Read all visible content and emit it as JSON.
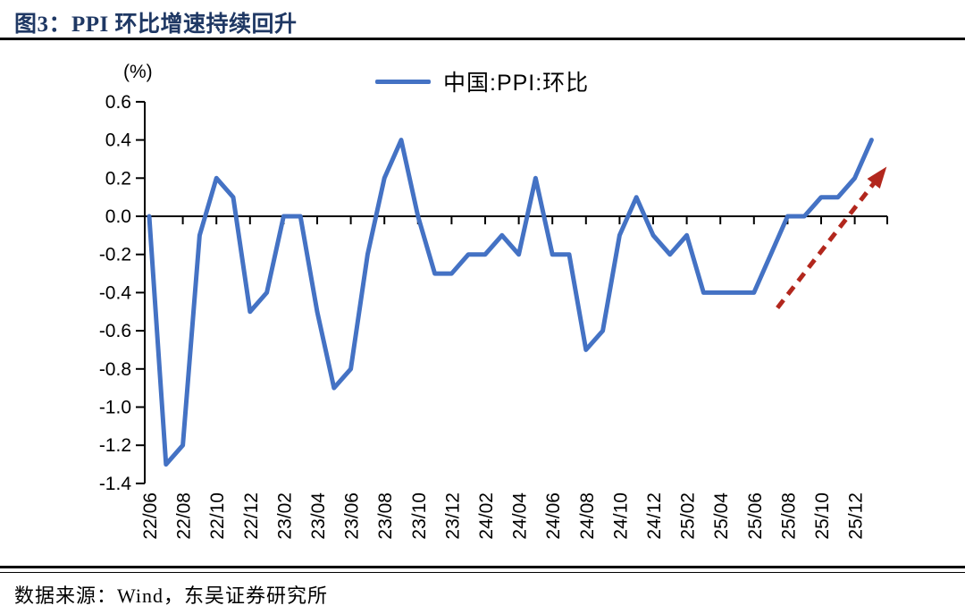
{
  "header": {
    "title": "图3：PPI 环比增速持续回升"
  },
  "footer": {
    "source": "数据来源：Wind，东吴证券研究所"
  },
  "colors": {
    "title_navy": "#1F3864",
    "series_blue": "#4472C4",
    "arrow_red": "#B2271D",
    "axis_black": "#000000"
  },
  "chart_data": {
    "type": "line",
    "title": "",
    "xlabel": "",
    "ylabel": "(%)",
    "legend_position": "top-center",
    "grid": false,
    "ylim": [
      -1.4,
      0.6
    ],
    "ytick_step": 0.2,
    "ytick_labels": [
      "0.6",
      "0.4",
      "0.2",
      "0.0",
      "-0.2",
      "-0.4",
      "-0.6",
      "-0.8",
      "-1.0",
      "-1.2",
      "-1.4"
    ],
    "categories": [
      "22/06",
      "22/07",
      "22/08",
      "22/09",
      "22/10",
      "22/11",
      "22/12",
      "23/01",
      "23/02",
      "23/03",
      "23/04",
      "23/05",
      "23/06",
      "23/07",
      "23/08",
      "23/09",
      "23/10",
      "23/11",
      "23/12",
      "24/01",
      "24/02",
      "24/03",
      "24/04",
      "24/05",
      "24/06",
      "24/07",
      "24/08",
      "24/09",
      "24/10",
      "24/11",
      "24/12",
      "25/01",
      "25/02",
      "25/03",
      "25/04",
      "25/05",
      "25/06",
      "25/07",
      "25/08",
      "25/09",
      "25/10",
      "25/11",
      "25/12",
      "26/01"
    ],
    "xtick_labels": [
      "22/06",
      "22/08",
      "22/10",
      "22/12",
      "23/02",
      "23/04",
      "23/06",
      "23/08",
      "23/10",
      "23/12",
      "24/02",
      "24/04",
      "24/06",
      "24/08",
      "24/10",
      "24/12",
      "25/02",
      "25/04",
      "25/06",
      "25/08",
      "25/10",
      "25/12"
    ],
    "xtick_every": 2,
    "series": [
      {
        "name": "中国:PPI:环比",
        "color": "#4472C4",
        "values": [
          0.0,
          -1.3,
          -1.2,
          -0.1,
          0.2,
          0.1,
          -0.5,
          -0.4,
          0.0,
          0.0,
          -0.5,
          -0.9,
          -0.8,
          -0.2,
          0.2,
          0.4,
          0.0,
          -0.3,
          -0.3,
          -0.2,
          -0.2,
          -0.1,
          -0.2,
          0.2,
          -0.2,
          -0.2,
          -0.7,
          -0.6,
          -0.1,
          0.1,
          -0.1,
          -0.2,
          -0.1,
          -0.4,
          -0.4,
          -0.4,
          -0.4,
          -0.2,
          0.0,
          0.0,
          0.1,
          0.1,
          0.2,
          0.4
        ]
      }
    ],
    "annotation_arrow": {
      "style": "dashed",
      "color": "#B2271D",
      "from": {
        "month_index": 37.4,
        "value": -0.48
      },
      "to": {
        "month_index": 43.9,
        "value": 0.26
      }
    }
  }
}
